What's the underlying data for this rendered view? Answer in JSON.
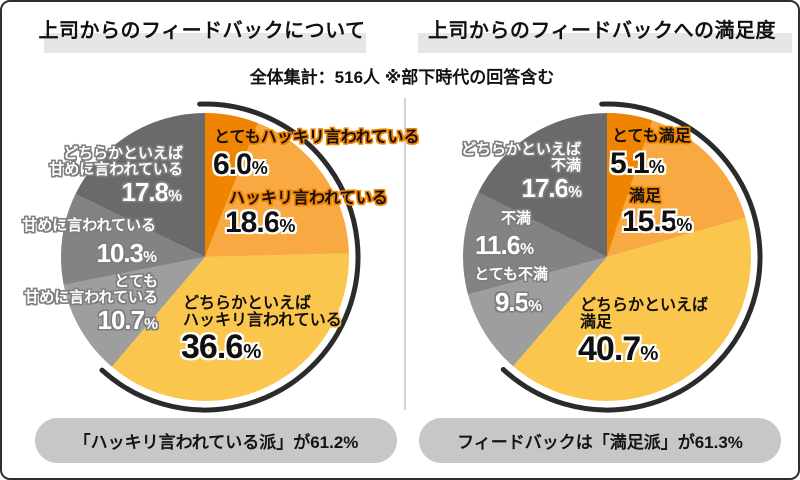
{
  "percent_symbol": "%",
  "header": {
    "left_title": "上司からのフィードバックについて",
    "right_title": "上司からのフィードバックへの満足度",
    "subtitle": "全体集計：516人 ※部下時代の回答含む"
  },
  "summary": {
    "left": "「ハッキリ言われている派」が61.2%",
    "right": "フィードバックは「満足派」が61.3%"
  },
  "colors": {
    "slice_strong_orange": "#ee8400",
    "slice_orange": "#f8a942",
    "slice_yellow": "#fbc64d",
    "slice_light_gray": "#9e9e9e",
    "slice_mid_gray": "#838383",
    "slice_dark_gray": "#6a6a6a",
    "highlight_arc": "#2b2b2b",
    "pill_background": "#c7c7c7",
    "title_band": "#e6e6e6"
  },
  "chart_data": [
    {
      "type": "pie",
      "title": "上司からのフィードバックについて",
      "sample_note": "全体集計：516人 ※部下時代の回答含む",
      "start_angle": "top",
      "direction": "clockwise",
      "highlight_arc_pct": 61.2,
      "highlight_note": "「ハッキリ言われている派」が61.2%",
      "slices": [
        {
          "label": "とてもハッキリ言われている",
          "lines": [
            "とてもハッキリ言われている"
          ],
          "value": 6.0,
          "pct": "6.0",
          "color": "#ee8400"
        },
        {
          "label": "ハッキリ言われている",
          "lines": [
            "ハッキリ言われている"
          ],
          "value": 18.6,
          "pct": "18.6",
          "color": "#f8a942"
        },
        {
          "label": "どちらかといえばハッキリ言われている",
          "lines": [
            "どちらかといえば",
            "ハッキリ言われている"
          ],
          "value": 36.6,
          "pct": "36.6",
          "color": "#fbc64d"
        },
        {
          "label": "とても甘めに言われている",
          "lines": [
            "とても",
            "甘めに言われている"
          ],
          "value": 10.7,
          "pct": "10.7",
          "color": "#9e9e9e"
        },
        {
          "label": "甘めに言われている",
          "lines": [
            "甘めに言われている"
          ],
          "value": 10.3,
          "pct": "10.3",
          "color": "#838383"
        },
        {
          "label": "どちらかといえば甘めに言われている",
          "lines": [
            "どちらかといえば",
            "甘めに言われている"
          ],
          "value": 17.8,
          "pct": "17.8",
          "color": "#6a6a6a"
        }
      ]
    },
    {
      "type": "pie",
      "title": "上司からのフィードバックへの満足度",
      "sample_note": "全体集計：516人 ※部下時代の回答含む",
      "start_angle": "top",
      "direction": "clockwise",
      "highlight_arc_pct": 61.3,
      "highlight_note": "フィードバックは「満足派」が61.3%",
      "slices": [
        {
          "label": "とても満足",
          "lines": [
            "とても満足"
          ],
          "value": 5.1,
          "pct": "5.1",
          "color": "#ee8400"
        },
        {
          "label": "満足",
          "lines": [
            "満足"
          ],
          "value": 15.5,
          "pct": "15.5",
          "color": "#f8a942"
        },
        {
          "label": "どちらかといえば満足",
          "lines": [
            "どちらかといえば",
            "満足"
          ],
          "value": 40.7,
          "pct": "40.7",
          "color": "#fbc64d"
        },
        {
          "label": "とても不満",
          "lines": [
            "とても不満"
          ],
          "value": 9.5,
          "pct": "9.5",
          "color": "#9e9e9e"
        },
        {
          "label": "不満",
          "lines": [
            "不満"
          ],
          "value": 11.6,
          "pct": "11.6",
          "color": "#838383"
        },
        {
          "label": "どちらかといえば不満",
          "lines": [
            "どちらかといえば",
            "不満"
          ],
          "value": 17.6,
          "pct": "17.6",
          "color": "#6a6a6a"
        }
      ]
    }
  ]
}
